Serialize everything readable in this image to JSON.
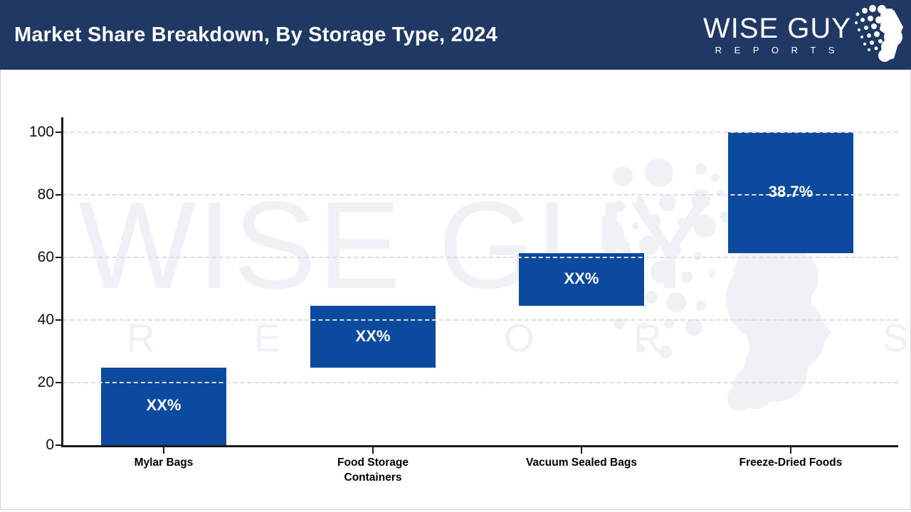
{
  "header": {
    "title": "Market Share Breakdown, By Storage Type, 2024",
    "logo": {
      "name": "WISE GUY",
      "tagline": "R E P O R T S"
    }
  },
  "watermark": {
    "line1": "WISE GUY",
    "line2": "R E P O R T S"
  },
  "chart_data": {
    "type": "bar",
    "subtype": "floating-segment-waterfall",
    "title": "Market Share Breakdown, By Storage Type, 2024",
    "categories": [
      "Mylar Bags",
      "Food Storage Containers",
      "Vacuum Sealed Bags",
      "Freeze-Dried Foods"
    ],
    "category_lines": [
      [
        "Mylar Bags"
      ],
      [
        "Food Storage",
        "Containers"
      ],
      [
        "Vacuum Sealed Bags"
      ],
      [
        "Freeze-Dried Foods"
      ]
    ],
    "segments": [
      {
        "category": "Mylar Bags",
        "start": 0,
        "end": 24.8,
        "label": "XX%"
      },
      {
        "category": "Food Storage Containers",
        "start": 24.8,
        "end": 44.5,
        "label": "XX%"
      },
      {
        "category": "Vacuum Sealed Bags",
        "start": 44.5,
        "end": 61.3,
        "label": "XX%"
      },
      {
        "category": "Freeze-Dried Foods",
        "start": 61.3,
        "end": 100,
        "label": "38.7%",
        "value": 38.7
      }
    ],
    "xlabel": "",
    "ylabel": "",
    "ylim": [
      0,
      100
    ],
    "yticks": [
      0,
      20,
      40,
      60,
      80,
      100
    ],
    "grid": "horizontal-dashed-above-bars",
    "legend": "none",
    "colors": {
      "bar": "#0b4a9e",
      "bar_label": "#ffffff",
      "header_bg": "#1f3864",
      "gridline": "#dedede",
      "axis": "#1a1a1a",
      "watermark": "#eff1f4"
    }
  }
}
